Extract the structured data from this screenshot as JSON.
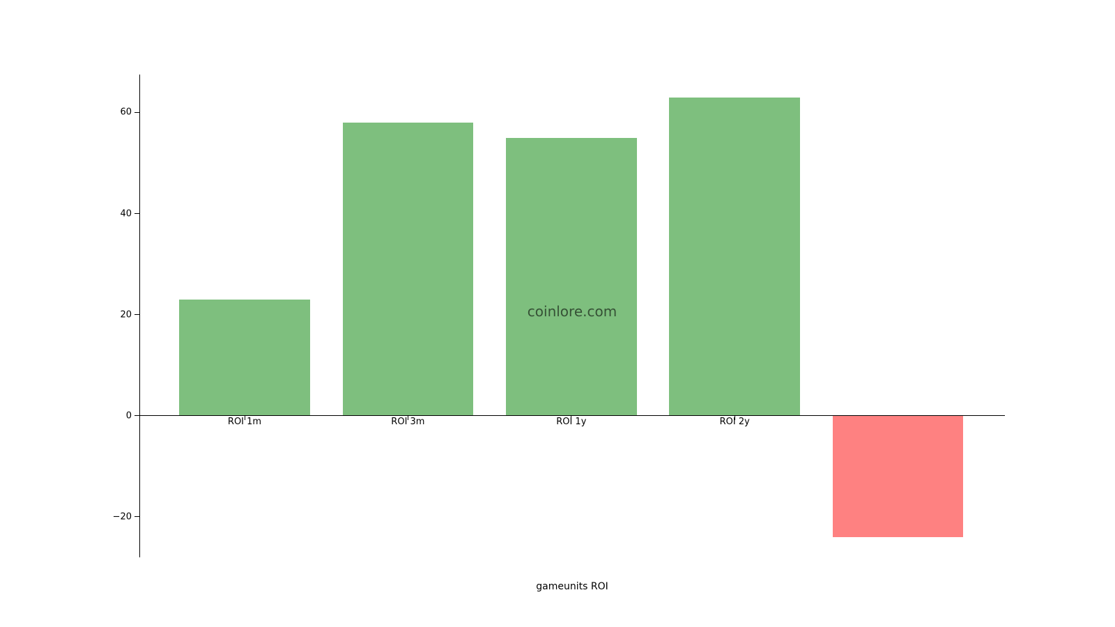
{
  "chart_data": {
    "type": "bar",
    "xlabel": "gameunits ROI",
    "watermark": "coinlore.com",
    "categories": [
      "ROI 1m",
      "ROI 3m",
      "ROI 1y",
      "ROI 2y",
      ""
    ],
    "values": [
      23,
      58,
      55,
      63,
      -24
    ],
    "series": [
      {
        "name": "gameunits ROI %",
        "values": [
          23,
          58,
          55,
          63,
          -24
        ]
      }
    ],
    "colors": {
      "positive_bar": "#7ebf7e",
      "negative_bar": "#fe8181",
      "axis": "#000000",
      "background": "#ffffff"
    },
    "yticks": [
      -20,
      0,
      20,
      40,
      60
    ],
    "ytick_labels": [
      "−20",
      "0",
      "20",
      "40",
      "60"
    ],
    "ylim": [
      -28,
      67.5
    ],
    "grid": false,
    "legend_position": "none"
  }
}
